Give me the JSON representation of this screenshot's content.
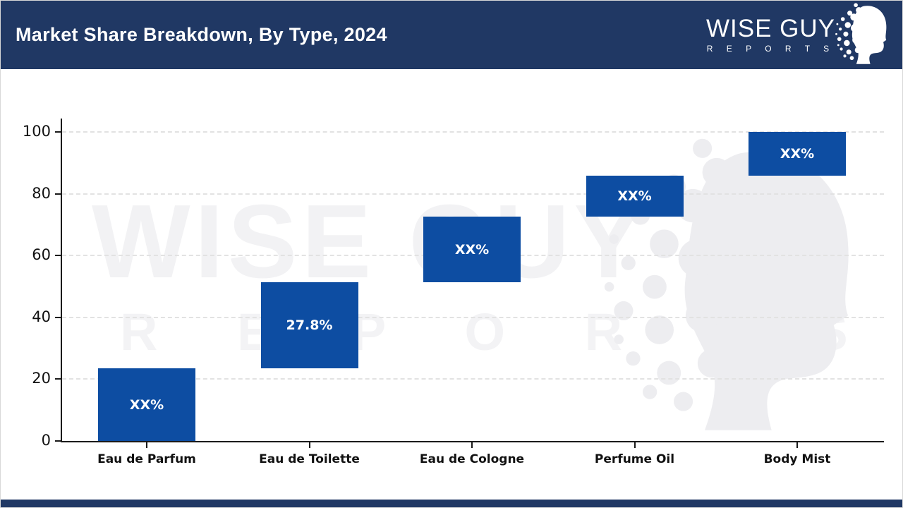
{
  "header": {
    "title": "Market Share Breakdown, By Type, 2024",
    "bg_color": "#203864",
    "logo": {
      "line1": "WISE GUY",
      "line2": "R E P O R T S",
      "face_icon": "dotted-head-profile-icon"
    }
  },
  "watermark": {
    "line1": "WISE GUY",
    "line2": "R E P O R T S",
    "face_icon": "dotted-head-profile-icon"
  },
  "footer": {
    "bg_color": "#203864"
  },
  "chart_data": {
    "type": "bar",
    "subtype": "waterfall",
    "title": "Market Share Breakdown, By Type, 2024",
    "categories": [
      "Eau de Parfum",
      "Eau de Toilette",
      "Eau de Cologne",
      "Perfume Oil",
      "Body Mist"
    ],
    "segments": [
      {
        "category": "Eau de Parfum",
        "start": 0,
        "end": 23.5,
        "label": "XX%"
      },
      {
        "category": "Eau de Toilette",
        "start": 23.5,
        "end": 51.3,
        "label": "27.8%"
      },
      {
        "category": "Eau de Cologne",
        "start": 51.3,
        "end": 72.6,
        "label": "XX%"
      },
      {
        "category": "Perfume Oil",
        "start": 72.6,
        "end": 85.8,
        "label": "XX%"
      },
      {
        "category": "Body Mist",
        "start": 85.8,
        "end": 100,
        "label": "XX%"
      }
    ],
    "only_numeric_label_shown": "27.8%",
    "xlabel": "",
    "ylabel": "",
    "y_ticks": [
      0,
      20,
      40,
      60,
      80,
      100
    ],
    "ylim": [
      0,
      107
    ],
    "grid": "horizontal-dashed",
    "legend": "none",
    "bar_color": "#0d4da2",
    "bar_label_color": "#ffffff",
    "axis_color": "#1a1a1a",
    "grid_color": "#e2e2e2",
    "tick_label_color": "#111111"
  }
}
